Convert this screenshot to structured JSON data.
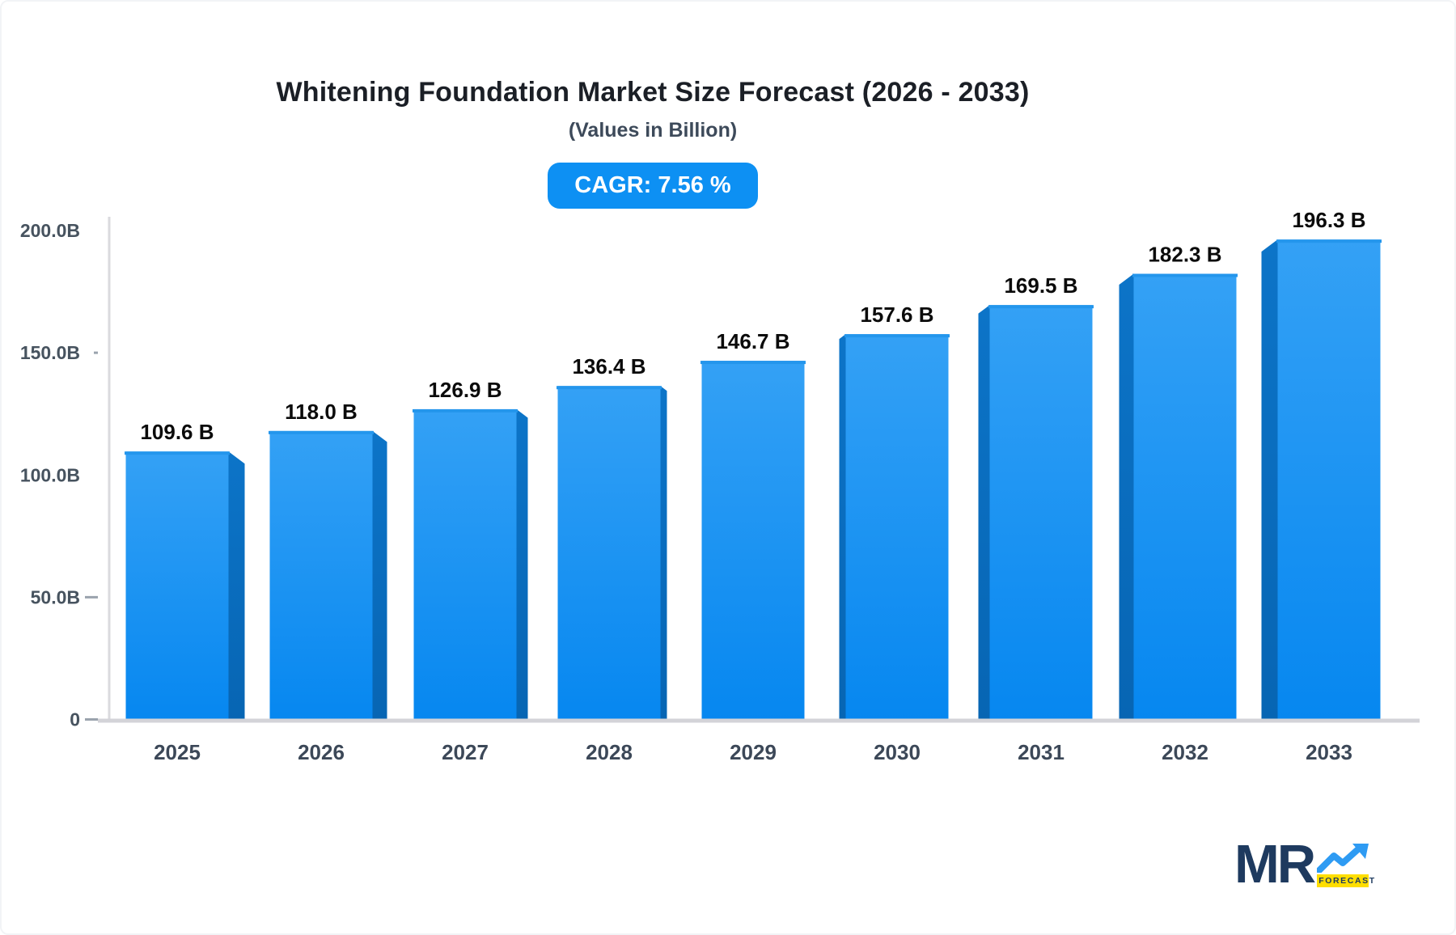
{
  "header": {
    "title": "Whitening Foundation Market Size Forecast (2026 - 2033)",
    "subtitle": "(Values in Billion)",
    "cagr_badge": "CAGR: 7.56 %"
  },
  "chart_data": {
    "type": "bar",
    "title": "Whitening Foundation Market Size Forecast (2026 - 2033)",
    "subtitle": "(Values in Billion)",
    "annotation": "CAGR: 7.56 %",
    "categories": [
      "2025",
      "2026",
      "2027",
      "2028",
      "2029",
      "2030",
      "2031",
      "2032",
      "2033"
    ],
    "values": [
      109.6,
      118.0,
      126.9,
      136.4,
      146.7,
      157.6,
      169.5,
      182.3,
      196.3
    ],
    "value_labels": [
      "109.6 B",
      "118.0 B",
      "126.9 B",
      "136.4 B",
      "146.7 B",
      "157.6 B",
      "169.5 B",
      "182.3 B",
      "196.3 B"
    ],
    "unit": "Billion",
    "xlabel": "",
    "ylabel": "",
    "ylim": [
      0,
      200
    ],
    "y_ticks": [
      {
        "value": 200,
        "label": "200.0B",
        "tick": "none"
      },
      {
        "value": 150,
        "label": "150.0B",
        "tick": "dot"
      },
      {
        "value": 100,
        "label": "100.0B",
        "tick": "none"
      },
      {
        "value": 50,
        "label": "50.0B",
        "tick": "dash"
      },
      {
        "value": 0,
        "label": "0",
        "tick": "dash"
      }
    ],
    "grid": false,
    "legend": "none",
    "bar_style": "3d-perspective-center",
    "colors": {
      "bar_face_top": "#34a1f5",
      "bar_face_bottom": "#0687f0",
      "bar_side_top": "#0c74c8",
      "bar_side_bottom": "#0765b3",
      "bar_cap": "#2496ec",
      "badge": "#0d90f3",
      "axis_line": "#dadade",
      "baseline": "#d3d3d8",
      "tick": "#9aa3ad",
      "y_label": "#47535f",
      "x_label": "#3c4858",
      "value_label": "#0b0b0b"
    }
  },
  "logo": {
    "text": "MR",
    "banner": "FORECAST",
    "icon": "trending-up-arrow-icon",
    "colors": {
      "navy": "#1e3a5f",
      "blue": "#2e9bf3",
      "yellow": "#ffde00"
    }
  }
}
